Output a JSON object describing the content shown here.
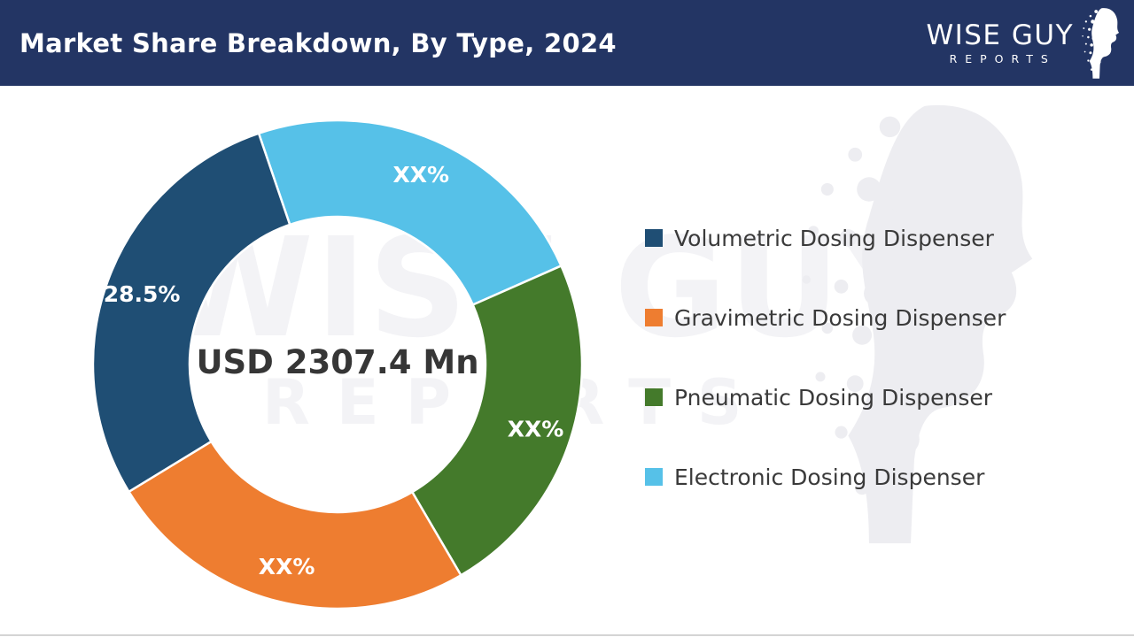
{
  "header": {
    "title": "Market Share Breakdown, By Type, 2024",
    "bg_color": "#233564",
    "logo": {
      "line1": "WISE GUY",
      "line2": "REPORTS"
    }
  },
  "watermark": {
    "line1": "WISE GUY",
    "line2": "REPORTS",
    "text_color": "#F3F3F6",
    "face_color": "#EDEDF1"
  },
  "chart_data": {
    "type": "pie",
    "subtype": "donut",
    "title": "Market Share Breakdown, By Type, 2024",
    "center_text": "USD 2307.4 Mn",
    "legend_position": "right",
    "start_angle_deg": -18.8,
    "inner_radius_ratio": 0.605,
    "label_radius_ratio": 0.851,
    "slice_gap_color": "#FFFFFF",
    "slices": [
      {
        "name": "Volumetric Dosing Dispenser",
        "value": 28.5,
        "label": "28.5%",
        "color": "#1F4E74"
      },
      {
        "name": "Gravimetric Dosing Dispenser",
        "value": 24.7,
        "label": "XX%",
        "color": "#EE7D30"
      },
      {
        "name": "Pneumatic Dosing Dispenser",
        "value": 23.2,
        "label": "XX%",
        "color": "#447A2B"
      },
      {
        "name": "Electronic Dosing Dispenser",
        "value": 23.6,
        "label": "XX%",
        "color": "#56C1E8"
      }
    ]
  }
}
